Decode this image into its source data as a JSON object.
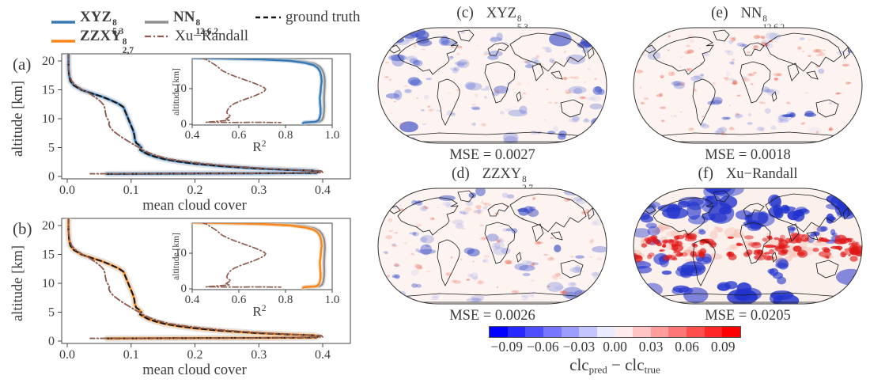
{
  "legend": {
    "xyz": {
      "base": "XYZ",
      "sup": "8",
      "sub": "5,3"
    },
    "nn": {
      "base": "NN",
      "sup": "8",
      "sub": "12,6,2"
    },
    "gt": {
      "label": "ground truth"
    },
    "zzxy": {
      "base": "ZZXY",
      "sup": "8",
      "sub": "2,7"
    },
    "xu": {
      "label": "Xu−Randall"
    }
  },
  "colors": {
    "xyz": "#3878b4",
    "zzxy": "#f8861b",
    "nn": "#8f8f8f",
    "gt": "#161616",
    "xu": "#8e5c50",
    "band_xyz": "#aecde8",
    "band_zzxy": "#f9d4a8",
    "band_gray": "#cfcfcf",
    "map_blue": "#3347c8",
    "map_red": "#e03a2a",
    "map_bg": "#fdf4f1",
    "map_bg_f": "#fcf0ec"
  },
  "axes": {
    "profile": {
      "xlabel": "mean cloud cover",
      "ylabel": "altitude [km]",
      "xticks": [
        "0.0",
        "0.1",
        "0.2",
        "0.3",
        "0.4"
      ],
      "yticks": [
        "0",
        "5",
        "10",
        "15",
        "20"
      ]
    },
    "inset": {
      "xlabel_base": "R",
      "xlabel_sup": "2",
      "ylabel": "altitude [km]",
      "xticks": [
        "0.4",
        "0.6",
        "0.8",
        "1.0"
      ],
      "yticks": [
        "0",
        "10"
      ]
    }
  },
  "maps_display": {
    "c": {
      "tag": "(c)",
      "base": "XYZ",
      "sup": "8",
      "sub": "5,3",
      "mse": "MSE = 0.0027"
    },
    "d": {
      "tag": "(d)",
      "base": "ZZXY",
      "sup": "8",
      "sub": "2,7",
      "mse": "MSE = 0.0026"
    },
    "e": {
      "tag": "(e)",
      "base": "NN",
      "sup": "8",
      "sub": "12,6,2",
      "mse": "MSE = 0.0018"
    },
    "f": {
      "tag": "(f)",
      "base": "Xu−Randall",
      "sup": "",
      "sub": "",
      "mse": "MSE = 0.0205"
    }
  },
  "colorbar_display": {
    "ticks": [
      "−0.09",
      "−0.06",
      "−0.03",
      "0.00",
      "0.03",
      "0.06",
      "0.09"
    ],
    "label": {
      "b1": "clc",
      "s1": "pred",
      "mid": " − ",
      "b2": "clc",
      "s2": "true"
    }
  },
  "chart_data": {
    "panels": [
      {
        "id": "a",
        "type": "line",
        "tag": "(a)",
        "xlabel": "mean cloud cover",
        "ylabel": "altitude [km]",
        "xlim": [
          0,
          0.44
        ],
        "ylim": [
          0,
          21.6
        ],
        "grid": false,
        "legend_position": "top-left-above-figure",
        "series": [
          {
            "name": "XYZ_5,3^8 prediction",
            "color": "xyz",
            "style": "solid",
            "points_ref": "profile_main"
          },
          {
            "name": "ground truth",
            "color": "gt",
            "style": "dashed",
            "points_ref": "profile_main"
          },
          {
            "name": "Xu-Randall",
            "color": "xu",
            "style": "dashdot",
            "points_ref": "profile_xu"
          }
        ],
        "inset": {
          "xlabel": "R^2",
          "ylabel": "altitude [km]",
          "xlim": [
            0.4,
            1.0
          ],
          "ylim": [
            0,
            19
          ],
          "series": [
            {
              "name": "NN_12,6,2^8",
              "color": "nn",
              "style": "solid",
              "points_ref": "r2_nn"
            },
            {
              "name": "XYZ_5,3^8",
              "color": "xyz",
              "style": "solid",
              "points_ref": "r2_model"
            },
            {
              "name": "Xu-Randall",
              "color": "xu",
              "style": "dashdot",
              "points_ref": "r2_xu"
            }
          ]
        }
      },
      {
        "id": "b",
        "type": "line",
        "tag": "(b)",
        "xlabel": "mean cloud cover",
        "ylabel": "altitude [km]",
        "xlim": [
          0,
          0.44
        ],
        "ylim": [
          0,
          21.6
        ],
        "grid": false,
        "series": [
          {
            "name": "ZZXY_2,7^8 prediction",
            "color": "zzxy",
            "style": "solid",
            "points_ref": "profile_main"
          },
          {
            "name": "ground truth",
            "color": "gt",
            "style": "dashed",
            "points_ref": "profile_main"
          },
          {
            "name": "Xu-Randall",
            "color": "xu",
            "style": "dashdot",
            "points_ref": "profile_xu"
          }
        ],
        "inset": {
          "xlabel": "R^2",
          "ylabel": "altitude [km]",
          "xlim": [
            0.4,
            1.0
          ],
          "ylim": [
            0,
            19
          ],
          "series": [
            {
              "name": "NN_12,6,2^8",
              "color": "nn",
              "style": "solid",
              "points_ref": "r2_nn"
            },
            {
              "name": "ZZXY_2,7^8",
              "color": "zzxy",
              "style": "solid",
              "points_ref": "r2_model"
            },
            {
              "name": "Xu-Randall",
              "color": "xu",
              "style": "dashdot",
              "points_ref": "r2_xu"
            }
          ]
        }
      }
    ],
    "curves": {
      "profile_main": [
        [
          0.002,
          21.3
        ],
        [
          0.002,
          19.0
        ],
        [
          0.003,
          17.5
        ],
        [
          0.005,
          16.5
        ],
        [
          0.01,
          15.8
        ],
        [
          0.022,
          15.0
        ],
        [
          0.038,
          14.4
        ],
        [
          0.055,
          13.8
        ],
        [
          0.068,
          13.2
        ],
        [
          0.08,
          12.6
        ],
        [
          0.088,
          12.0
        ],
        [
          0.091,
          11.2
        ],
        [
          0.094,
          10.4
        ],
        [
          0.097,
          9.6
        ],
        [
          0.1,
          8.8
        ],
        [
          0.103,
          8.0
        ],
        [
          0.105,
          7.2
        ],
        [
          0.106,
          6.4
        ],
        [
          0.108,
          5.8
        ],
        [
          0.113,
          5.4
        ],
        [
          0.116,
          5.0
        ],
        [
          0.114,
          4.6
        ],
        [
          0.12,
          4.2
        ],
        [
          0.127,
          3.8
        ],
        [
          0.138,
          3.4
        ],
        [
          0.152,
          3.0
        ],
        [
          0.172,
          2.6
        ],
        [
          0.2,
          2.2
        ],
        [
          0.24,
          1.8
        ],
        [
          0.295,
          1.4
        ],
        [
          0.345,
          1.15
        ],
        [
          0.385,
          1.0
        ],
        [
          0.393,
          0.85
        ],
        [
          0.39,
          0.62
        ],
        [
          0.3,
          0.55
        ],
        [
          0.18,
          0.5
        ],
        [
          0.062,
          0.45
        ]
      ],
      "profile_xu": [
        [
          0.002,
          21.3
        ],
        [
          0.002,
          19.0
        ],
        [
          0.004,
          17.5
        ],
        [
          0.007,
          16.5
        ],
        [
          0.013,
          15.8
        ],
        [
          0.024,
          15.0
        ],
        [
          0.036,
          14.3
        ],
        [
          0.045,
          13.6
        ],
        [
          0.052,
          13.0
        ],
        [
          0.057,
          12.4
        ],
        [
          0.059,
          11.8
        ],
        [
          0.06,
          11.0
        ],
        [
          0.061,
          10.4
        ],
        [
          0.063,
          10.0
        ],
        [
          0.066,
          9.4
        ],
        [
          0.065,
          9.0
        ],
        [
          0.068,
          8.4
        ],
        [
          0.073,
          7.8
        ],
        [
          0.08,
          7.2
        ],
        [
          0.088,
          6.6
        ],
        [
          0.097,
          6.0
        ],
        [
          0.106,
          5.4
        ],
        [
          0.113,
          5.0
        ],
        [
          0.12,
          4.5
        ],
        [
          0.13,
          4.0
        ],
        [
          0.143,
          3.5
        ],
        [
          0.16,
          3.0
        ],
        [
          0.185,
          2.6
        ],
        [
          0.215,
          2.2
        ],
        [
          0.255,
          1.8
        ],
        [
          0.31,
          1.4
        ],
        [
          0.365,
          1.1
        ],
        [
          0.398,
          0.95
        ],
        [
          0.4,
          0.7
        ],
        [
          0.3,
          0.55
        ],
        [
          0.15,
          0.5
        ],
        [
          0.036,
          0.47
        ]
      ],
      "r2_model": [
        [
          0.875,
          0.3
        ],
        [
          0.878,
          0.5
        ],
        [
          0.93,
          0.7
        ],
        [
          0.942,
          1.2
        ],
        [
          0.947,
          2.0
        ],
        [
          0.95,
          3.0
        ],
        [
          0.95,
          4.5
        ],
        [
          0.948,
          6.0
        ],
        [
          0.947,
          7.5
        ],
        [
          0.95,
          9.0
        ],
        [
          0.952,
          10.5
        ],
        [
          0.955,
          12.0
        ],
        [
          0.953,
          13.5
        ],
        [
          0.948,
          14.8
        ],
        [
          0.938,
          15.8
        ],
        [
          0.92,
          16.6
        ],
        [
          0.885,
          17.2
        ],
        [
          0.82,
          17.8
        ],
        [
          0.7,
          18.2
        ],
        [
          0.52,
          18.5
        ],
        [
          0.4,
          18.6
        ]
      ],
      "r2_nn": [
        [
          0.885,
          0.3
        ],
        [
          0.89,
          0.5
        ],
        [
          0.945,
          0.7
        ],
        [
          0.957,
          1.2
        ],
        [
          0.962,
          2.0
        ],
        [
          0.965,
          3.5
        ],
        [
          0.966,
          5.0
        ],
        [
          0.965,
          7.0
        ],
        [
          0.966,
          9.0
        ],
        [
          0.968,
          11.0
        ],
        [
          0.968,
          12.5
        ],
        [
          0.965,
          14.0
        ],
        [
          0.958,
          15.2
        ],
        [
          0.946,
          16.2
        ],
        [
          0.925,
          17.0
        ],
        [
          0.88,
          17.6
        ],
        [
          0.78,
          18.1
        ],
        [
          0.6,
          18.4
        ],
        [
          0.43,
          18.6
        ]
      ],
      "r2_xu": [
        [
          0.44,
          18.6
        ],
        [
          0.46,
          18.2
        ],
        [
          0.48,
          17.4
        ],
        [
          0.5,
          16.6
        ],
        [
          0.515,
          15.8
        ],
        [
          0.53,
          15.0
        ],
        [
          0.555,
          14.2
        ],
        [
          0.585,
          13.4
        ],
        [
          0.62,
          12.6
        ],
        [
          0.655,
          11.8
        ],
        [
          0.685,
          11.0
        ],
        [
          0.705,
          10.4
        ],
        [
          0.715,
          9.9
        ],
        [
          0.71,
          9.3
        ],
        [
          0.69,
          8.6
        ],
        [
          0.665,
          7.9
        ],
        [
          0.635,
          7.2
        ],
        [
          0.605,
          6.5
        ],
        [
          0.58,
          5.8
        ],
        [
          0.565,
          5.1
        ],
        [
          0.555,
          4.4
        ],
        [
          0.55,
          3.8
        ],
        [
          0.548,
          3.2
        ],
        [
          0.555,
          2.7
        ],
        [
          0.565,
          2.3
        ],
        [
          0.555,
          1.9
        ],
        [
          0.545,
          1.5
        ],
        [
          0.56,
          1.1
        ],
        [
          0.5,
          0.8
        ],
        [
          0.46,
          0.55
        ],
        [
          0.62,
          0.5
        ],
        [
          0.65,
          0.55
        ],
        [
          0.78,
          0.5
        ]
      ]
    },
    "maps": [
      {
        "id": "c",
        "type": "map",
        "tag": "(c)",
        "title": "XYZ^8_(5,3)",
        "mse": 0.0027,
        "pattern": "weak scattered blue (negative) anomalies, very faint red speckles"
      },
      {
        "id": "d",
        "type": "map",
        "tag": "(d)",
        "title": "ZZXY^8_(2,7)",
        "mse": 0.0026,
        "pattern": "weak scattered blue and red anomalies"
      },
      {
        "id": "e",
        "type": "map",
        "tag": "(e)",
        "title": "NN^8_(12,6,2)",
        "mse": 0.0018,
        "pattern": "weakest anomalies, faint blue and red speckles"
      },
      {
        "id": "f",
        "type": "map",
        "tag": "(f)",
        "title": "Xu-Randall",
        "mse": 0.0205,
        "pattern": "strong blue underestimation at extratropics/storm tracks, strong red overestimation along tropics"
      }
    ],
    "colorbar": {
      "type": "colorbar",
      "label": "clc_pred − clc_true",
      "cmap": "blue-white-red",
      "vmin": -0.105,
      "vmax": 0.105,
      "n_segments": 14,
      "tick_values": [
        -0.09,
        -0.06,
        -0.03,
        0.0,
        0.03,
        0.06,
        0.09
      ]
    }
  }
}
